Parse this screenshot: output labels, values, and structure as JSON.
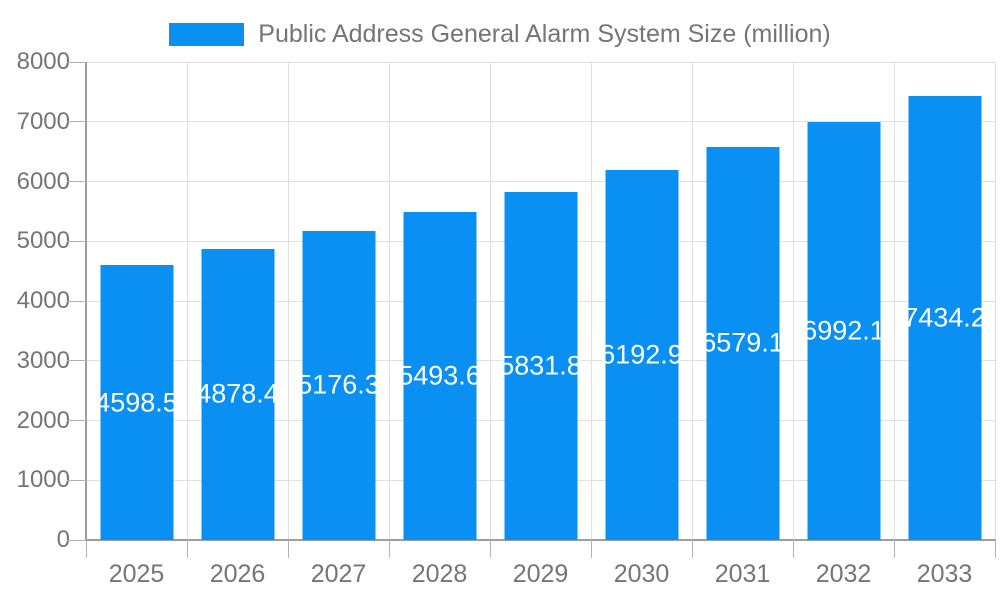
{
  "legend": {
    "label": "Public Address General Alarm System Size (million)"
  },
  "chart_data": {
    "type": "bar",
    "title": "Public Address General Alarm System Size (million)",
    "categories": [
      "2025",
      "2026",
      "2027",
      "2028",
      "2029",
      "2030",
      "2031",
      "2032",
      "2033"
    ],
    "values": [
      4598.5,
      4878.4,
      5176.3,
      5493.6,
      5831.8,
      6192.9,
      6579.1,
      6992.1,
      7434.2
    ],
    "data_labels": [
      "4598.5",
      "4878.4",
      "5176.3",
      "5493.6",
      "5831.8",
      "6192.9",
      "6579.1",
      "6992.1",
      "7434.2"
    ],
    "series": [
      {
        "name": "Public Address General Alarm System Size (million)",
        "values": [
          4598.5,
          4878.4,
          5176.3,
          5493.6,
          5831.8,
          6192.9,
          6579.1,
          6992.1,
          7434.2
        ]
      }
    ],
    "xlabel": "",
    "ylabel": "",
    "ylim": [
      0,
      8000
    ],
    "y_ticks": [
      0,
      1000,
      2000,
      3000,
      4000,
      5000,
      6000,
      7000,
      8000
    ],
    "y_tick_labels": [
      "0",
      "1000",
      "2000",
      "3000",
      "4000",
      "5000",
      "6000",
      "7000",
      "8000"
    ],
    "grid": true,
    "legend_position": "top",
    "colors": {
      "bar": "#0a8ff2",
      "bar_label_text": "#ffffff",
      "axis_text": "#757575",
      "gridline": "#e0e0e0",
      "axis_line": "#9e9e9e",
      "tick_line": "#b3b3b3"
    }
  }
}
